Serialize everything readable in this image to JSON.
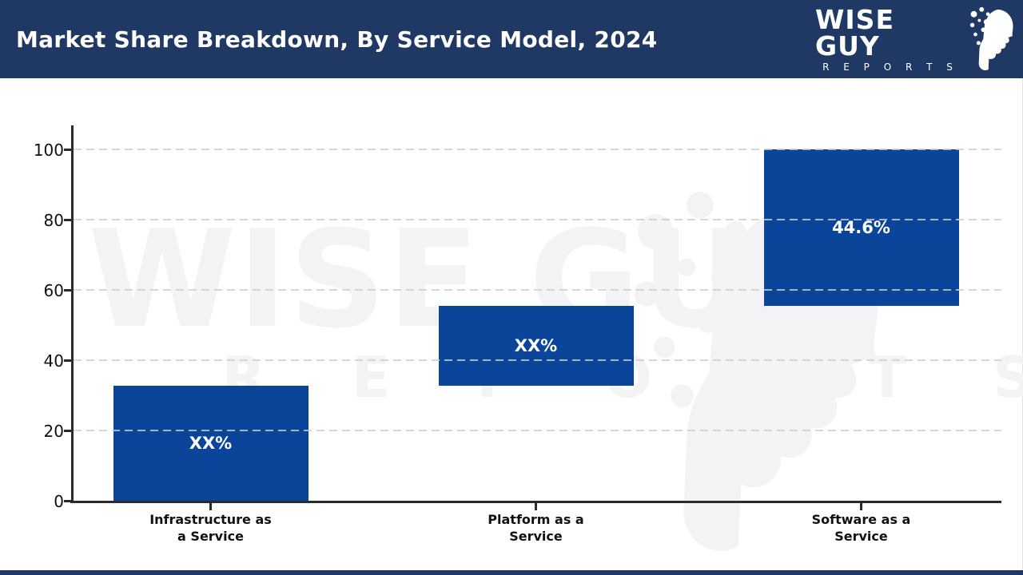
{
  "header": {
    "title": "Market Share Breakdown, By Service Model, 2024",
    "logo": {
      "line1": "WISE GUY",
      "line2": "R E P O R T S"
    }
  },
  "watermark": {
    "line1": "WISE GUY",
    "line2": "R E P O R T S"
  },
  "chart_data": {
    "type": "bar",
    "variant": "floating-waterfall",
    "title": "Market Share Breakdown, By Service Model, 2024",
    "categories": [
      "Infrastructure as\na Service",
      "Platform as a\nService",
      "Software as a\nService"
    ],
    "bars": [
      {
        "category": "Infrastructure as\na Service",
        "start": 0,
        "end": 32.7,
        "value_label": "XX%"
      },
      {
        "category": "Platform as a\nService",
        "start": 32.7,
        "end": 55.4,
        "value_label": "XX%"
      },
      {
        "category": "Software as a\nService",
        "start": 55.4,
        "end": 100,
        "value_label": "44.6%"
      }
    ],
    "y_ticks": [
      0,
      20,
      40,
      60,
      80,
      100
    ],
    "ylim": [
      0,
      107
    ],
    "xlabel": "",
    "ylabel": "",
    "grid": "horizontal-dashed",
    "legend": null,
    "bar_color": "#0b4599"
  },
  "colors": {
    "header_bg": "#1f3864",
    "bar": "#0b4599",
    "grid": "#d9d9d9",
    "axis": "#2b2b2b",
    "watermark": "#f3f3f6",
    "title_text": "#ffffff"
  }
}
